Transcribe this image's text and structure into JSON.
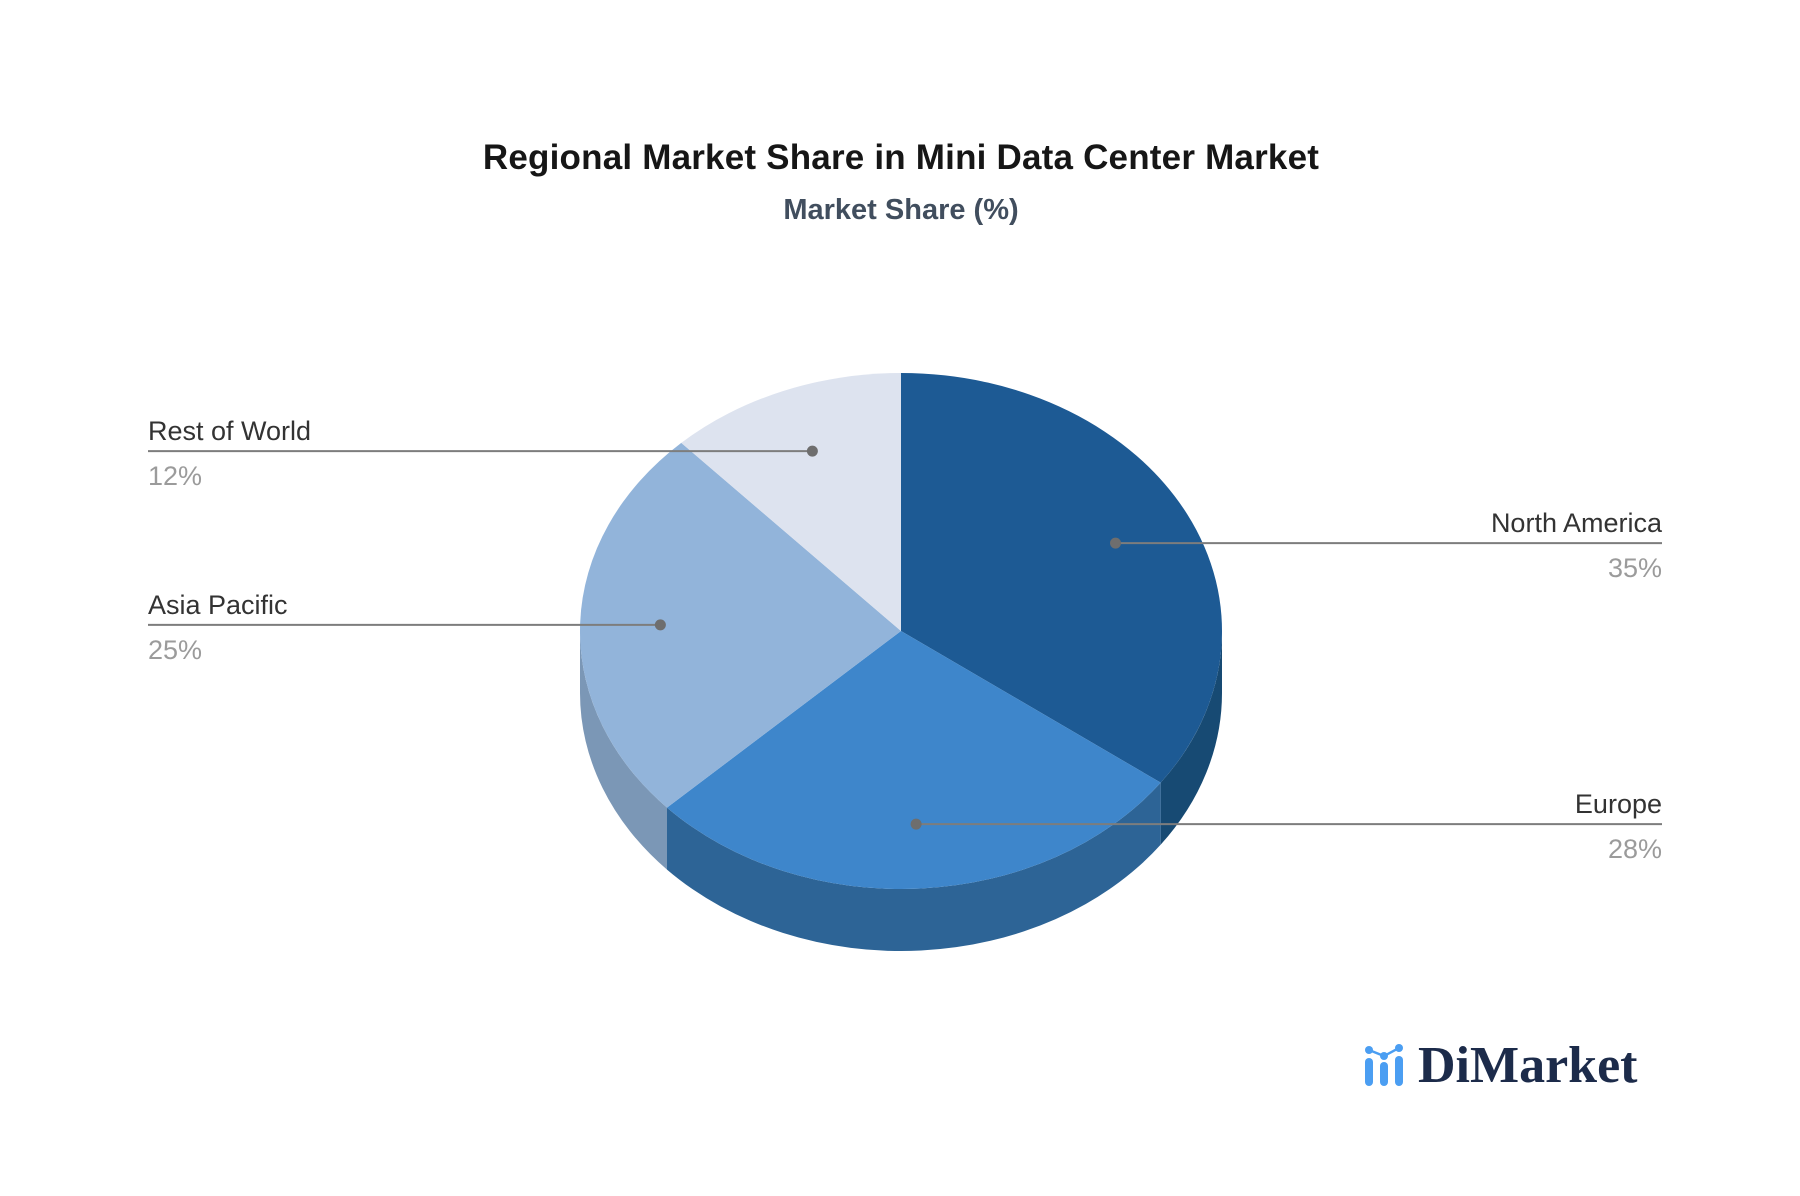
{
  "chart_data": {
    "type": "pie",
    "style": "3d",
    "title": "Regional Market Share in Mini Data Center Market",
    "subtitle": "Market Share (%)",
    "unit": "%",
    "start_angle_deg": 0,
    "direction": "clockwise",
    "legend_position": "none",
    "segments": [
      {
        "label": "North America",
        "value": 35,
        "display": "35%",
        "color": "#1d5a94",
        "side_color": "#174a73"
      },
      {
        "label": "Europe",
        "value": 28,
        "display": "28%",
        "color": "#3e86cb",
        "side_color": "#2d6496"
      },
      {
        "label": "Asia Pacific",
        "value": 25,
        "display": "25%",
        "color": "#92b4da",
        "side_color": "#7b97b6"
      },
      {
        "label": "Rest of World",
        "value": 12,
        "display": "12%",
        "color": "#dde3ef"
      }
    ],
    "label_text_color": "#333333",
    "pct_text_color": "#9b9b9b",
    "leader_line_color": "#7d7d7d",
    "leader_dot_color": "#6e6e6e"
  },
  "footer": {
    "brand": "DiMarket",
    "logo_icon": "bar-line-chart-icon",
    "brand_color": "#1c2b4a",
    "icon_color": "#4b9ef2"
  }
}
